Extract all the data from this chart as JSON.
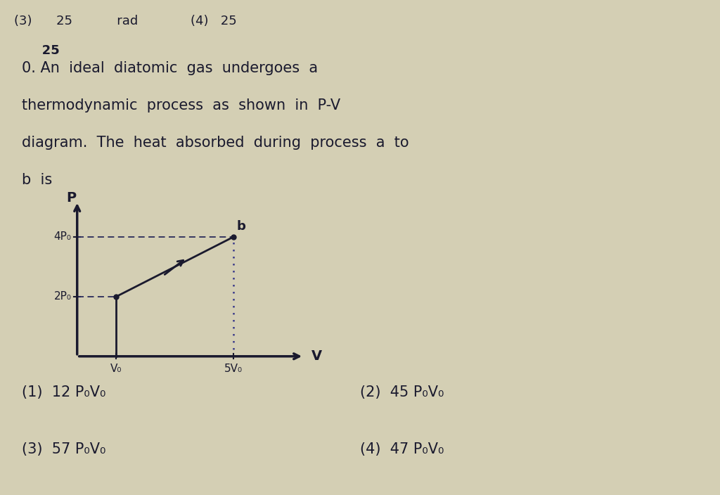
{
  "background_color": "#d4cfb4",
  "page_text_color": "#1a1a2e",
  "title_lines": [
    "0. An  ideal  diatomic  gas  undergoes  a",
    "thermodynamic  process  as  shown  in  P-V",
    "diagram.  The  heat  absorbed  during  process  a  to",
    "b  is"
  ],
  "title_fontsize": 15,
  "axis_label_P": "P",
  "axis_label_V": "V",
  "tick_labels_y": [
    "4P₀",
    "2P₀"
  ],
  "tick_labels_x": [
    "V₀",
    "5V₀"
  ],
  "point_a": [
    1,
    2
  ],
  "point_b": [
    4,
    4
  ],
  "dashed_color": "#2a2a5a",
  "dotted_color": "#3a3a8a",
  "line_color": "#1a1a2e",
  "options": [
    "(1)  12 P₀V₀",
    "(2)  45 P₀V₀",
    "(3)  57 P₀V₀",
    "(4)  47 P₀V₀"
  ],
  "options_fontsize": 15,
  "top_text": "(3)      25           rad             (4)   25",
  "top_text2": "   25"
}
